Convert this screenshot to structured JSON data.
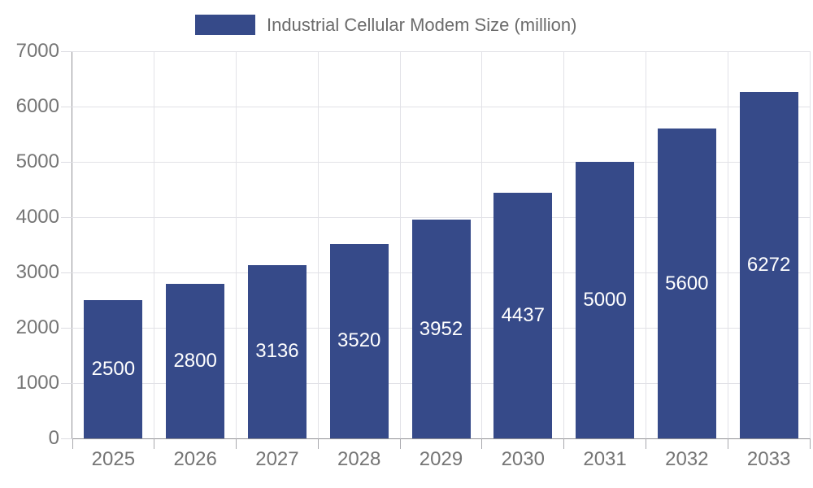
{
  "chart_data": {
    "type": "bar",
    "title": "Industrial Cellular Modem Size (million)",
    "legend": [
      "Industrial Cellular Modem Size (million)"
    ],
    "legend_position": "top-center",
    "categories": [
      "2025",
      "2026",
      "2027",
      "2028",
      "2029",
      "2030",
      "2031",
      "2032",
      "2033"
    ],
    "series": [
      {
        "name": "Industrial Cellular Modem Size (million)",
        "values": [
          2500,
          2800,
          3136,
          3520,
          3952,
          4437,
          5000,
          5600,
          6272
        ]
      }
    ],
    "bar_value_labels": [
      "2500",
      "2800",
      "3136",
      "3520",
      "3952",
      "4437",
      "5000",
      "5600",
      "6272"
    ],
    "xlabel": "",
    "ylabel": "",
    "ylim": [
      0,
      7000
    ],
    "y_ticks": [
      0,
      1000,
      2000,
      3000,
      4000,
      5000,
      6000,
      7000
    ],
    "grid": true,
    "colors": {
      "bar": "#364A89",
      "bar_label_text": "#ffffff",
      "axis_text": "#757575",
      "legend_text": "#6B6B6B",
      "gridline": "#E2E2E7",
      "y_tick": "#DCDCE2",
      "x_tick": "#A9A9AE",
      "axis_line": "#919196",
      "background": "#ffffff"
    }
  }
}
